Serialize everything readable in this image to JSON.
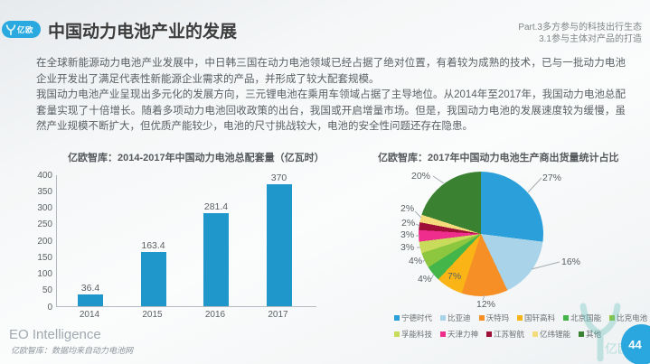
{
  "header": {
    "brand_text": "亿欧",
    "title": "中国动力电池产业的发展",
    "section_line1": "Part.3多方参与的科技出行生态",
    "section_line2": "3.1参与主体对产品的打造"
  },
  "body": {
    "paragraph1": "在全球新能源动力电池产业发展中，中日韩三国在动力电池领域已经占据了绝对位置，有着较为成熟的技术，已与一批动力电池企业开发出了满足代表性新能源企业需求的产品，并形成了较大配套规模。",
    "paragraph2": "我国动力电池产业呈现出多元化的发展方向，三元锂电池在乘用车领域占据了主导地位。从2014年至2017年，我国动力电池总配套量实现了十倍增长。随着多项动力电池回收政策的出台，我国或开启增量市场。但是，我国动力电池的发展速度较为缓慢，虽然产业规模不断扩大，但优质产能较少，电池的尺寸挑战较大，电池的安全性问题还存在隐患。"
  },
  "chart_data": [
    {
      "type": "bar",
      "title": "亿欧智库：2014-2017年中国动力电池总配套量（亿瓦时）",
      "categories": [
        "2014",
        "2015",
        "2016",
        "2017"
      ],
      "values": [
        36.4,
        163.4,
        281.4,
        370
      ],
      "ylim": [
        0,
        400
      ],
      "yticks": [
        0,
        50,
        100,
        150,
        200,
        250,
        300,
        350,
        400
      ],
      "bar_color": "#2097cb",
      "grid": false,
      "legend_position": "none",
      "xlabel": "",
      "ylabel": ""
    },
    {
      "type": "pie",
      "title": "亿欧智库：2017年中国动力电池生产商出货量统计占比",
      "series": [
        {
          "name": "宁德时代",
          "value": 27,
          "color": "#2b9fd9"
        },
        {
          "name": "比亚迪",
          "value": 16,
          "color": "#a9d3e8"
        },
        {
          "name": "沃特玛",
          "value": 12,
          "color": "#f68f26"
        },
        {
          "name": "国轩高科",
          "value": 7,
          "color": "#fbb415"
        },
        {
          "name": "北京国能",
          "value": 4,
          "color": "#44b649"
        },
        {
          "name": "比克电池",
          "value": 4,
          "color": "#8dc63f"
        },
        {
          "name": "孚能科技",
          "value": 3,
          "color": "#c8db5a"
        },
        {
          "name": "天津力神",
          "value": 3,
          "color": "#ee2d8c"
        },
        {
          "name": "江苏智航",
          "value": 2,
          "color": "#9e1038"
        },
        {
          "name": "亿纬锂能",
          "value": 2,
          "color": "#f4dc7d"
        },
        {
          "name": "其他",
          "value": 20,
          "color": "#3a8132"
        }
      ],
      "label_format": "percent",
      "legend_position": "bottom"
    }
  ],
  "footer": {
    "brand": "EO Intelligence",
    "source_note": "亿欧智库：数据均来自动力电池网",
    "page_number": "44"
  },
  "colors": {
    "accent_blue": "#29a9e0",
    "bar_blue": "#2097cb",
    "watermark_teal": "#4dbaaf"
  }
}
